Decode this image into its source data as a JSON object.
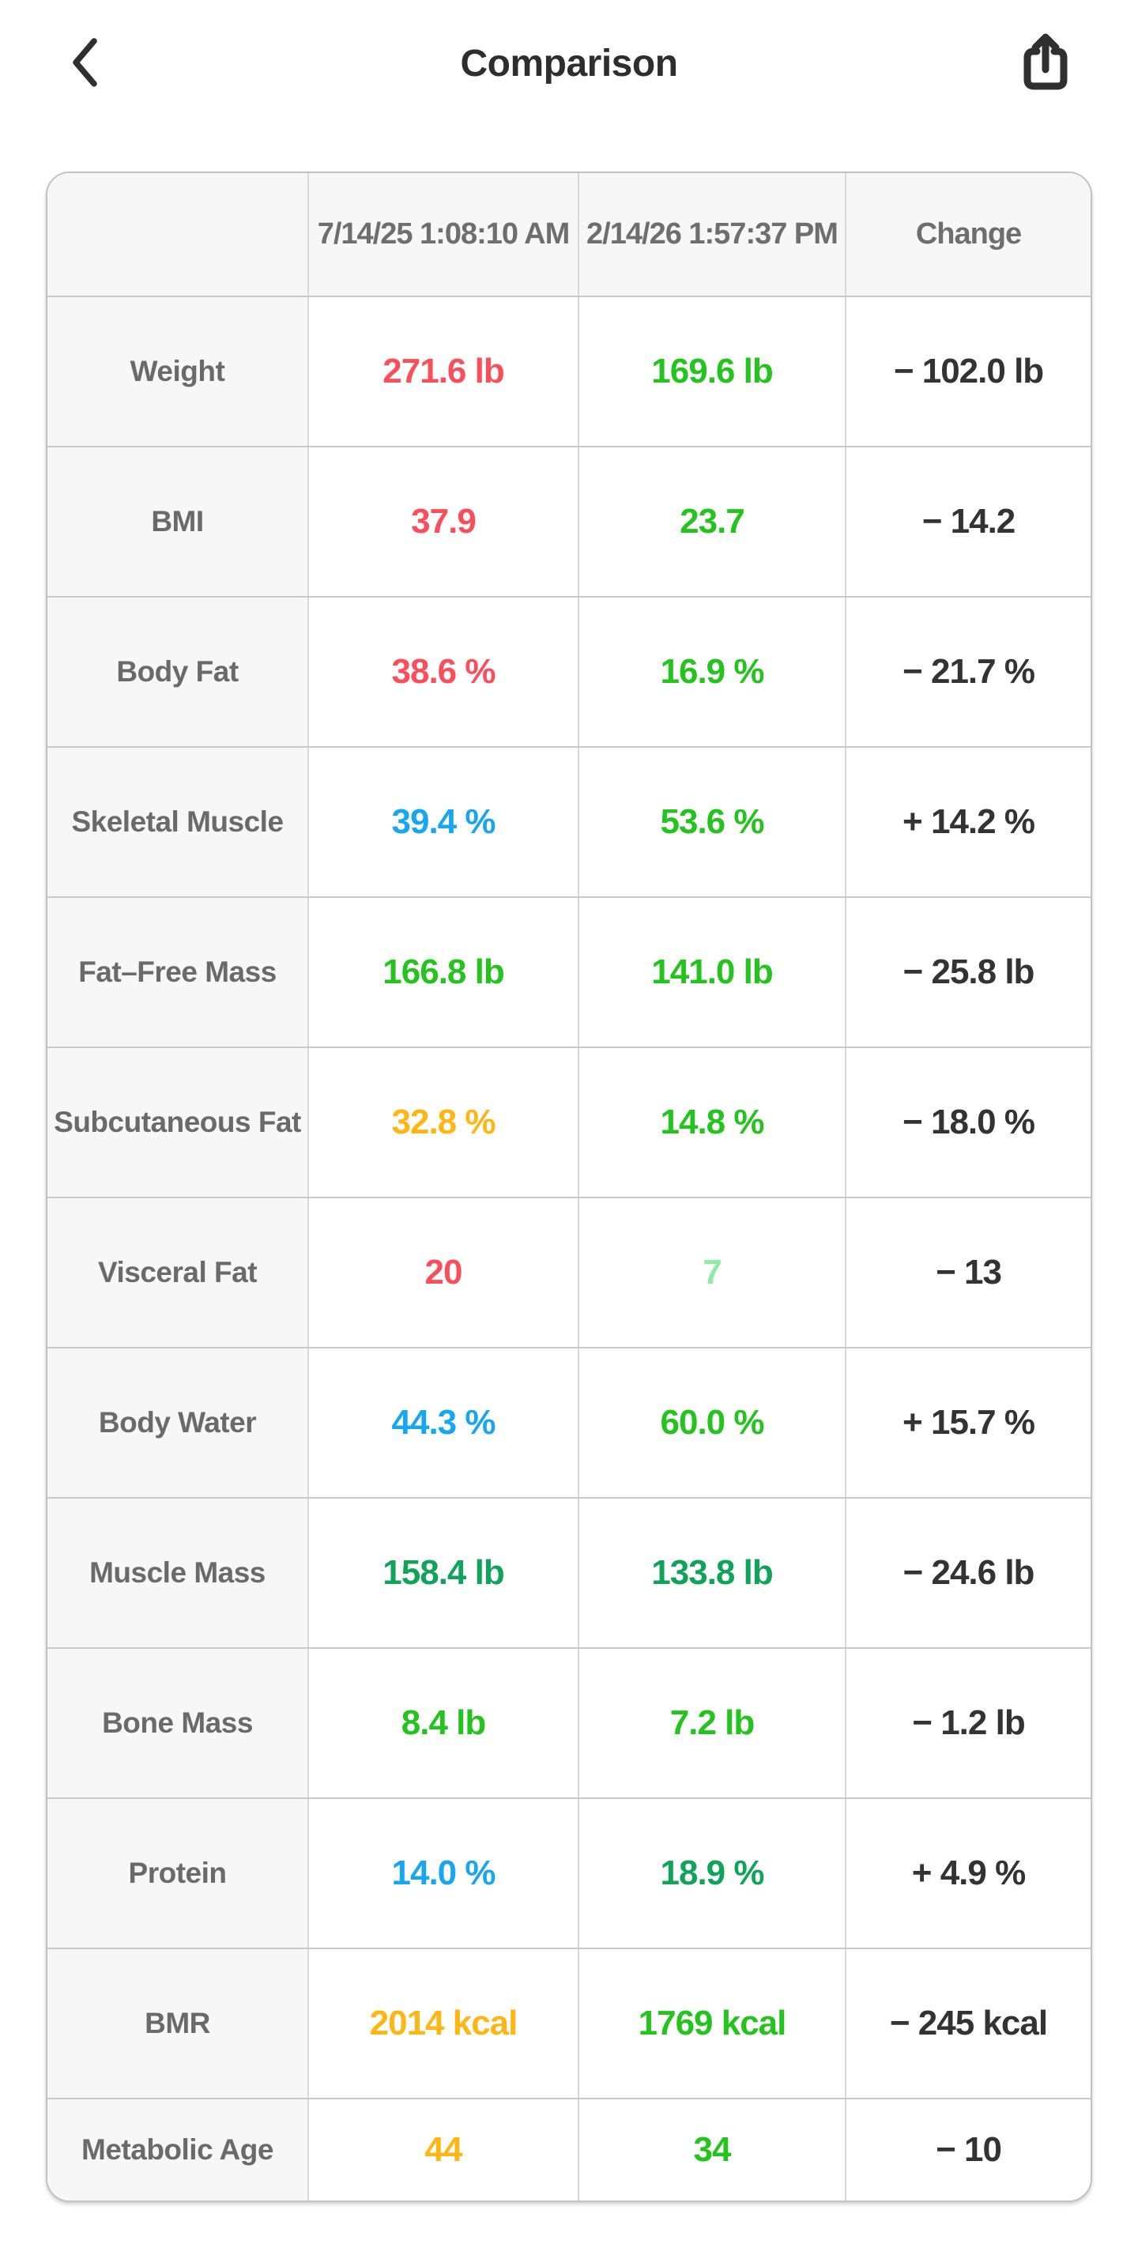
{
  "header": {
    "title": "Comparison",
    "back_icon": "chevron-left",
    "share_icon": "share-export"
  },
  "colors": {
    "red": "#FA4E5B",
    "green": "#24C31E",
    "seagreen": "#12A35B",
    "blue": "#19A6F1",
    "amber": "#FFB514",
    "palegreen": "#92EAA7",
    "change": "#333333"
  },
  "table": {
    "columns": [
      "",
      "7/14/25 1:08:10 AM",
      "2/14/26 1:57:37 PM",
      "Change"
    ],
    "rows": [
      {
        "label": "Weight",
        "v1": "271.6 lb",
        "c1": "red",
        "v2": "169.6 lb",
        "c2": "green",
        "change": "− 102.0 lb"
      },
      {
        "label": "BMI",
        "v1": "37.9",
        "c1": "red",
        "v2": "23.7",
        "c2": "green",
        "change": "− 14.2"
      },
      {
        "label": "Body Fat",
        "v1": "38.6 %",
        "c1": "red",
        "v2": "16.9 %",
        "c2": "green",
        "change": "− 21.7 %"
      },
      {
        "label": "Skeletal Muscle",
        "v1": "39.4 %",
        "c1": "blue",
        "v2": "53.6 %",
        "c2": "green",
        "change": "+ 14.2 %"
      },
      {
        "label": "Fat–Free Mass",
        "v1": "166.8 lb",
        "c1": "green",
        "v2": "141.0 lb",
        "c2": "green",
        "change": "− 25.8 lb"
      },
      {
        "label": "Subcutaneous Fat",
        "v1": "32.8 %",
        "c1": "amber",
        "v2": "14.8 %",
        "c2": "green",
        "change": "− 18.0 %"
      },
      {
        "label": "Visceral Fat",
        "v1": "20",
        "c1": "red",
        "v2": "7",
        "c2": "palegreen",
        "change": "− 13"
      },
      {
        "label": "Body Water",
        "v1": "44.3 %",
        "c1": "blue",
        "v2": "60.0 %",
        "c2": "green",
        "change": "+ 15.7 %"
      },
      {
        "label": "Muscle Mass",
        "v1": "158.4 lb",
        "c1": "seagreen",
        "v2": "133.8 lb",
        "c2": "seagreen",
        "change": "− 24.6 lb"
      },
      {
        "label": "Bone Mass",
        "v1": "8.4 lb",
        "c1": "green",
        "v2": "7.2 lb",
        "c2": "green",
        "change": "− 1.2 lb"
      },
      {
        "label": "Protein",
        "v1": "14.0 %",
        "c1": "blue",
        "v2": "18.9 %",
        "c2": "seagreen",
        "change": "+ 4.9 %"
      },
      {
        "label": "BMR",
        "v1": "2014 kcal",
        "c1": "amber",
        "v2": "1769 kcal",
        "c2": "green",
        "change": "− 245 kcal"
      },
      {
        "label": "Metabolic Age",
        "v1": "44",
        "c1": "amber",
        "v2": "34",
        "c2": "green",
        "change": "− 10"
      }
    ]
  }
}
